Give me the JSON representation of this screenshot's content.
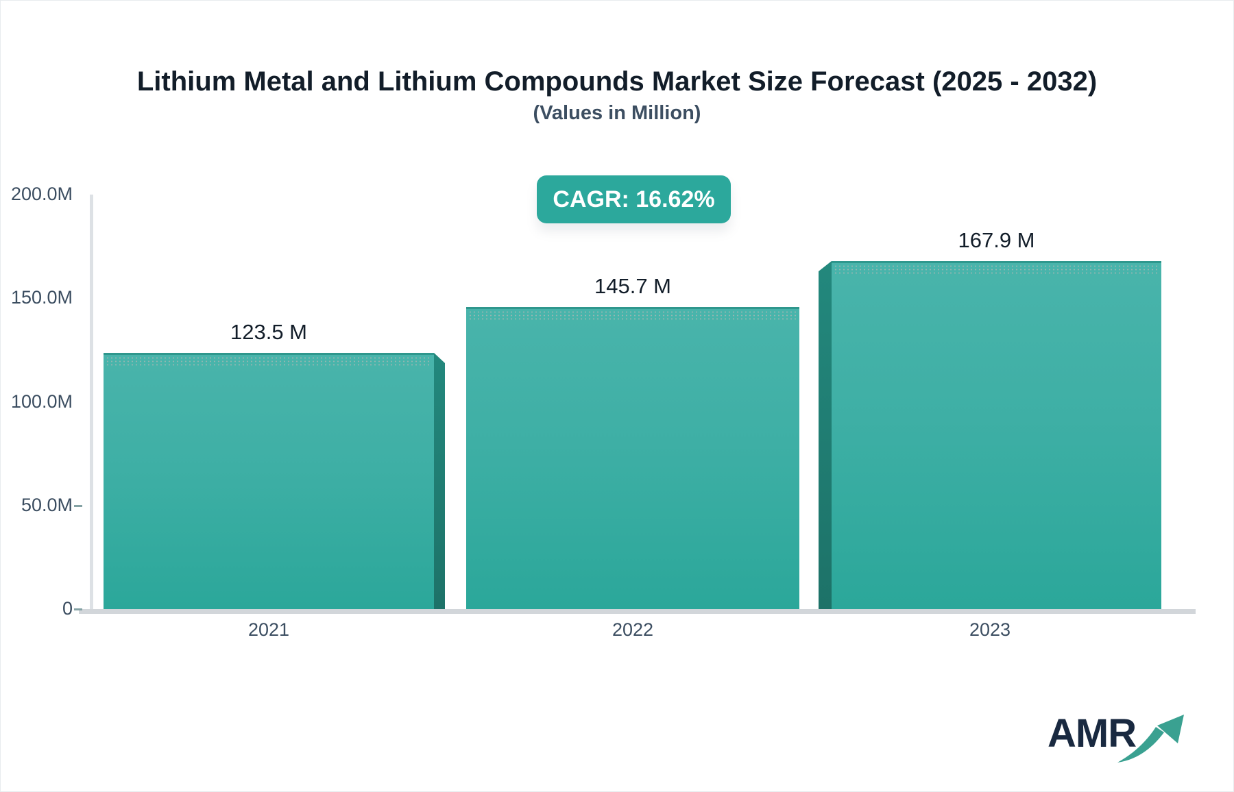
{
  "header": {
    "title": "Lithium Metal and Lithium Compounds Market Size Forecast (2025 - 2032)",
    "subtitle": "(Values in Million)"
  },
  "badge": {
    "label": "CAGR: 16.62%",
    "background": "#2ca89c"
  },
  "chart_data": {
    "type": "bar",
    "title": "Lithium Metal and Lithium Compounds Market Size Forecast (2025 - 2032)",
    "subtitle": "(Values in Million)",
    "cagr_label": "CAGR: 16.62%",
    "categories": [
      "2021",
      "2022",
      "2023"
    ],
    "values": [
      123.5,
      145.7,
      167.9
    ],
    "value_labels": [
      "123.5 M",
      "145.7 M",
      "167.9 M"
    ],
    "unit": "Million",
    "xlabel": "",
    "ylabel": "",
    "ylim": [
      0,
      200
    ],
    "y_ticks": [
      {
        "label": "200.0M",
        "value": 200,
        "dash": false
      },
      {
        "label": "150.0M",
        "value": 150,
        "dash": false
      },
      {
        "label": "100.0M",
        "value": 100,
        "dash": false
      },
      {
        "label": "50.0M",
        "value": 50,
        "dash": true
      },
      {
        "label": "0",
        "value": 0,
        "dash": true
      }
    ],
    "grid": false,
    "legend": null,
    "bar_color_top": "#49b4ab",
    "bar_color_bottom": "#2ba79a",
    "bar_side_color": "#1f7c72",
    "axis_color": "#d2d6da",
    "style_3d": true
  },
  "branding": {
    "logo_text": "AMR",
    "logo_text_color": "#192940",
    "arrow_color": "#3aa191"
  }
}
